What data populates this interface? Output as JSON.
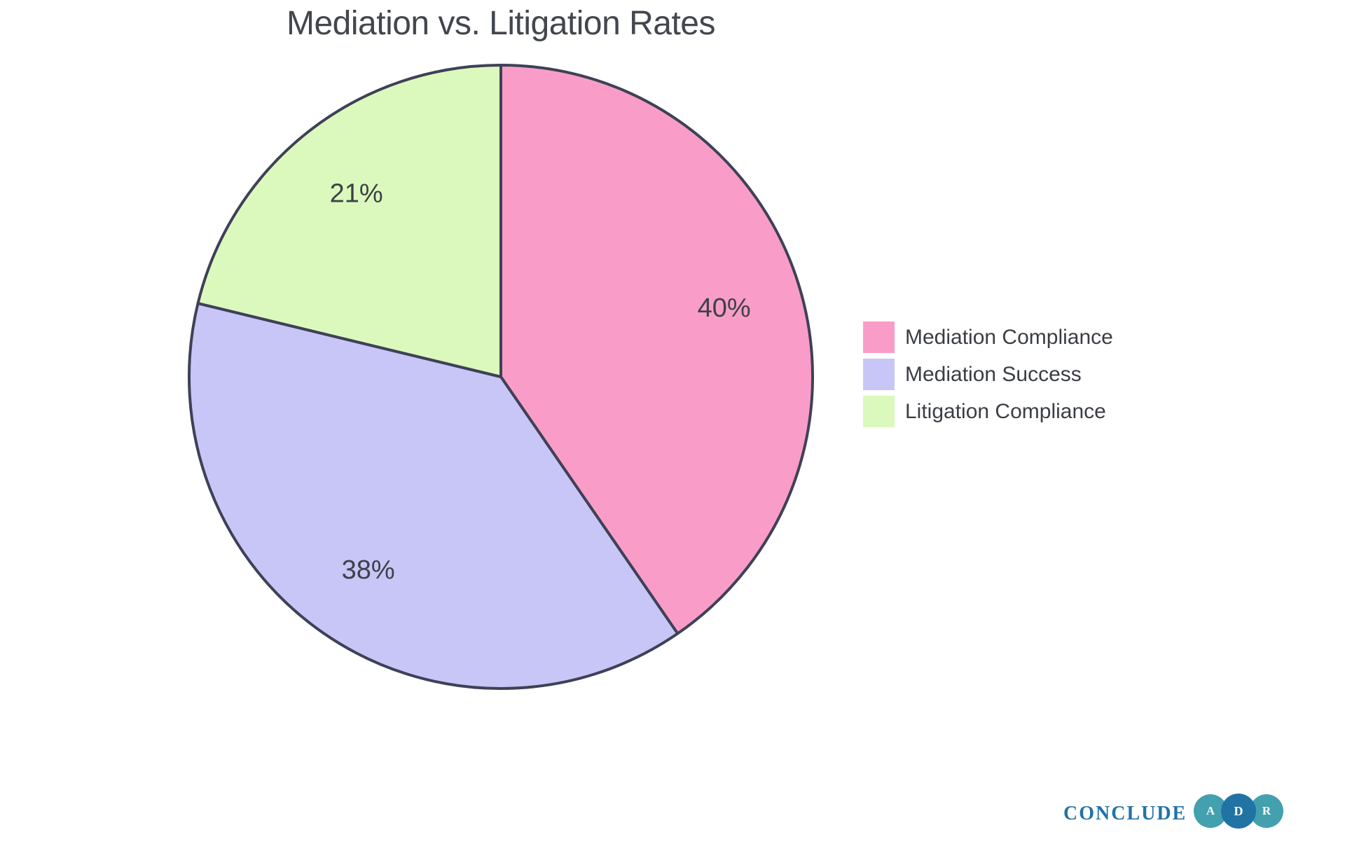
{
  "chart_data": {
    "type": "pie",
    "title": "Mediation vs. Litigation Rates",
    "labels": [
      "Mediation Compliance",
      "Mediation Success",
      "Litigation Compliance"
    ],
    "values": [
      40,
      38,
      21
    ],
    "value_labels": [
      "40%",
      "38%",
      "21%"
    ],
    "colors": [
      "#F99DC8",
      "#C8C6F7",
      "#DBF9BC"
    ],
    "slice_border_color": "#3E4156",
    "slice_border_width": 4,
    "start_angle_deg": 0,
    "direction": "clockwise",
    "label_radius_fraction": 0.75,
    "legend_position": "right",
    "grid": false
  },
  "logo": {
    "wordmark": "CONCLUDE",
    "wordmark_color": "#2272A8",
    "circles": [
      {
        "letter": "A",
        "color": "#42A0AF"
      },
      {
        "letter": "D",
        "color": "#2173A4"
      },
      {
        "letter": "R",
        "color": "#42A0AF"
      }
    ]
  }
}
